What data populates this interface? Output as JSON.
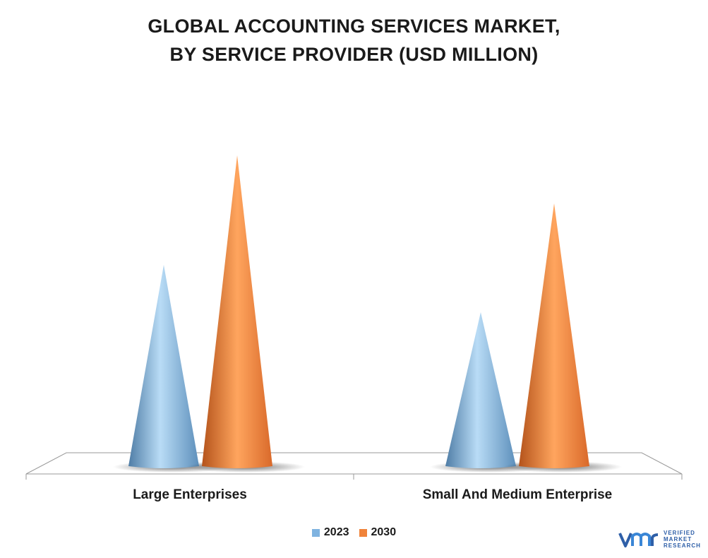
{
  "chart_data": {
    "type": "bar",
    "title_line1": "GLOBAL ACCOUNTING SERVICES MARKET,",
    "title_line2": "BY SERVICE PROVIDER (USD MILLION)",
    "categories": [
      "Large Enterprises",
      "Small And Medium Enterprise"
    ],
    "series": [
      {
        "name": "2023",
        "values": [
          285,
          218
        ],
        "color": "#7fb3e0"
      },
      {
        "name": "2030",
        "values": [
          440,
          372
        ],
        "color": "#f0833a"
      }
    ],
    "ylim": [
      0,
      560
    ],
    "grid": false,
    "legend": "bottom-center",
    "bar_shape": "cone"
  },
  "logo": {
    "line1": "VERIFIED",
    "line2": "MARKET",
    "line3": "RESEARCH"
  }
}
